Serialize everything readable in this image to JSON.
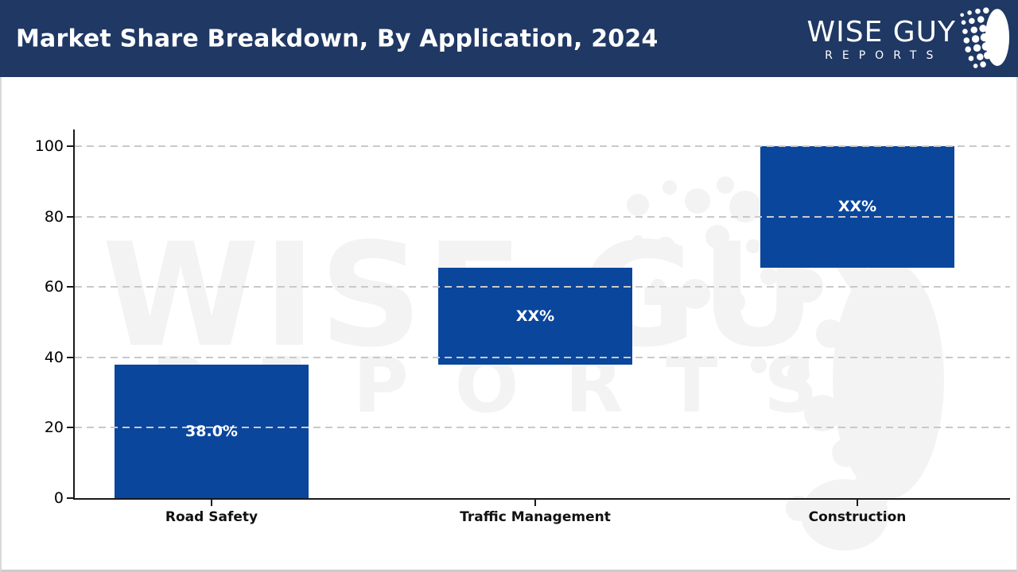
{
  "header": {
    "title": "Market Share Breakdown, By Application, 2024",
    "bg_color": "#1f3864",
    "logo": {
      "line1": "WISE GUY",
      "line2": "REPORTS"
    }
  },
  "watermark": {
    "line1": "WISE GUY",
    "line2": "REPORTS"
  },
  "chart_data": {
    "type": "bar",
    "subtype": "waterfall-floating-segments",
    "title": "Market Share Breakdown, By Application, 2024",
    "categories": [
      "Road Safety",
      "Traffic Management",
      "Construction"
    ],
    "segments": [
      {
        "category": "Road Safety",
        "start": 0,
        "end": 38,
        "height_pct": 38,
        "data_label": "38.0%"
      },
      {
        "category": "Traffic Management",
        "start": 38,
        "end": 65.5,
        "height_pct": 27.5,
        "data_label": "XX%"
      },
      {
        "category": "Construction",
        "start": 65.5,
        "end": 100,
        "height_pct": 34.5,
        "data_label": "XX%"
      }
    ],
    "yticks": [
      0,
      20,
      40,
      60,
      80,
      100
    ],
    "ylim": [
      0,
      100
    ],
    "xlabel": "",
    "ylabel": "",
    "grid": "horizontal dashed, drawn over bars",
    "legend": "none",
    "bar_color": "#0a469c",
    "bar_label_color": "#ffffff",
    "grid_color": "#c9c9c9",
    "axis_color": "#1a1a1a",
    "watermark_color": "#f3f3f3"
  }
}
